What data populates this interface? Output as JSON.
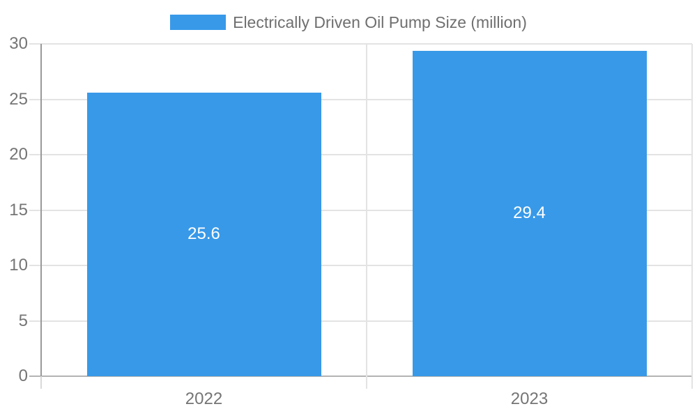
{
  "chart_data": {
    "type": "bar",
    "title": "Electrically Driven Oil Pump Size (million)",
    "categories": [
      "2022",
      "2023"
    ],
    "series": [
      {
        "name": "Electrically Driven Oil Pump Size (million)",
        "values": [
          25.6,
          29.4
        ]
      }
    ],
    "data_labels": [
      "25.6",
      "29.4"
    ],
    "xlabel": "",
    "ylabel": "",
    "ylim": [
      0,
      30
    ],
    "yticks": [
      0,
      5,
      10,
      15,
      20,
      25,
      30
    ],
    "grid": true,
    "legend_position": "top"
  },
  "colors": {
    "bar": "#3899e8",
    "bar_label": "#ffffff",
    "gridline": "#e3e3e3",
    "axis_y": "#999999",
    "axis_x": "#b3b3b3",
    "tick_light": "#d9d9d9",
    "tick_text": "#757575",
    "legend_text": "#6f6f6f",
    "background": "#ffffff"
  }
}
